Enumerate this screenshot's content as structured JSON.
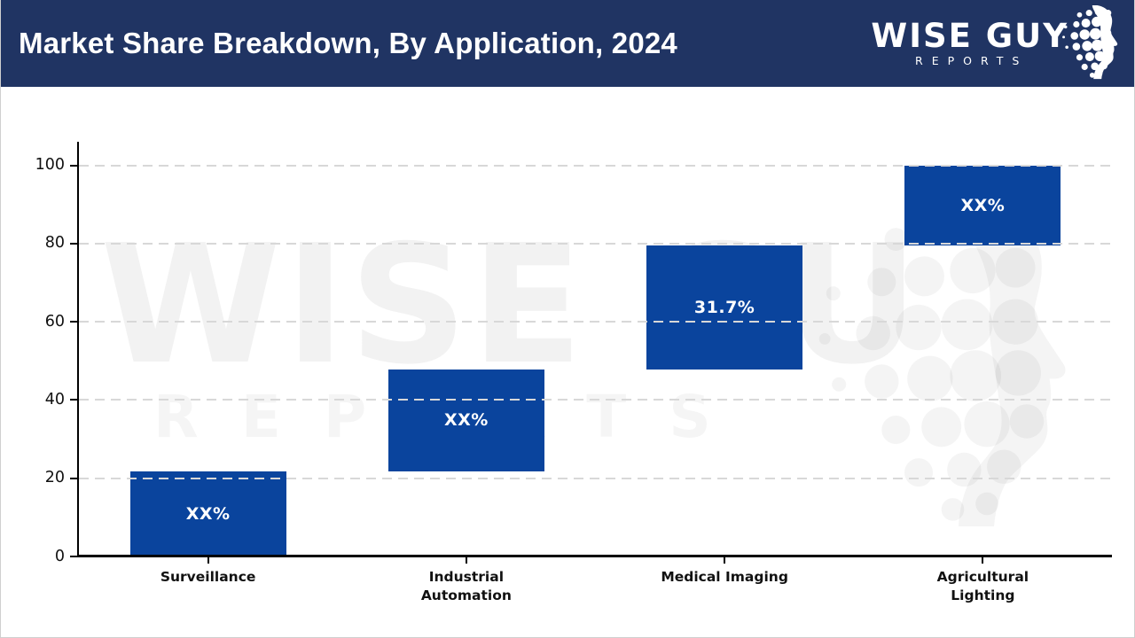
{
  "header": {
    "title": "Market Share Breakdown, By Application, 2024",
    "logo": {
      "line1": "WISE GUY",
      "line2": "REPORTS"
    }
  },
  "watermark": {
    "line1": "WISE GU",
    "line2": "REPORTS"
  },
  "chart_data": {
    "type": "bar",
    "subtype": "waterfall",
    "title": "Market Share Breakdown, By Application, 2024",
    "categories": [
      "Surveillance",
      "Industrial\nAutomation",
      "Medical Imaging",
      "Agricultural\nLighting"
    ],
    "segments": [
      {
        "category": "Surveillance",
        "start": 0,
        "end": 21.8,
        "value": 21.8,
        "label": "XX%"
      },
      {
        "category": "Industrial Automation",
        "start": 21.8,
        "end": 47.8,
        "value": 26.0,
        "label": "XX%"
      },
      {
        "category": "Medical Imaging",
        "start": 47.8,
        "end": 79.5,
        "value": 31.7,
        "label": "31.7%"
      },
      {
        "category": "Agricultural Lighting",
        "start": 79.5,
        "end": 100,
        "value": 20.5,
        "label": "XX%"
      }
    ],
    "yticks": [
      0,
      20,
      40,
      60,
      80,
      100
    ],
    "ylim": [
      0,
      106
    ],
    "grid": "horizontal-dashed",
    "legend": "none",
    "bar_color": "#0a449d",
    "value_label_color": "#ffffff",
    "axis_color": "#000000",
    "gridline_color": "#d8d8d8"
  },
  "colors": {
    "header_background": "#203463",
    "header_text": "#ffffff",
    "chart_background": "#ffffff",
    "bar_blue": "#0a449d",
    "frame_border": "#cfcfcf"
  }
}
